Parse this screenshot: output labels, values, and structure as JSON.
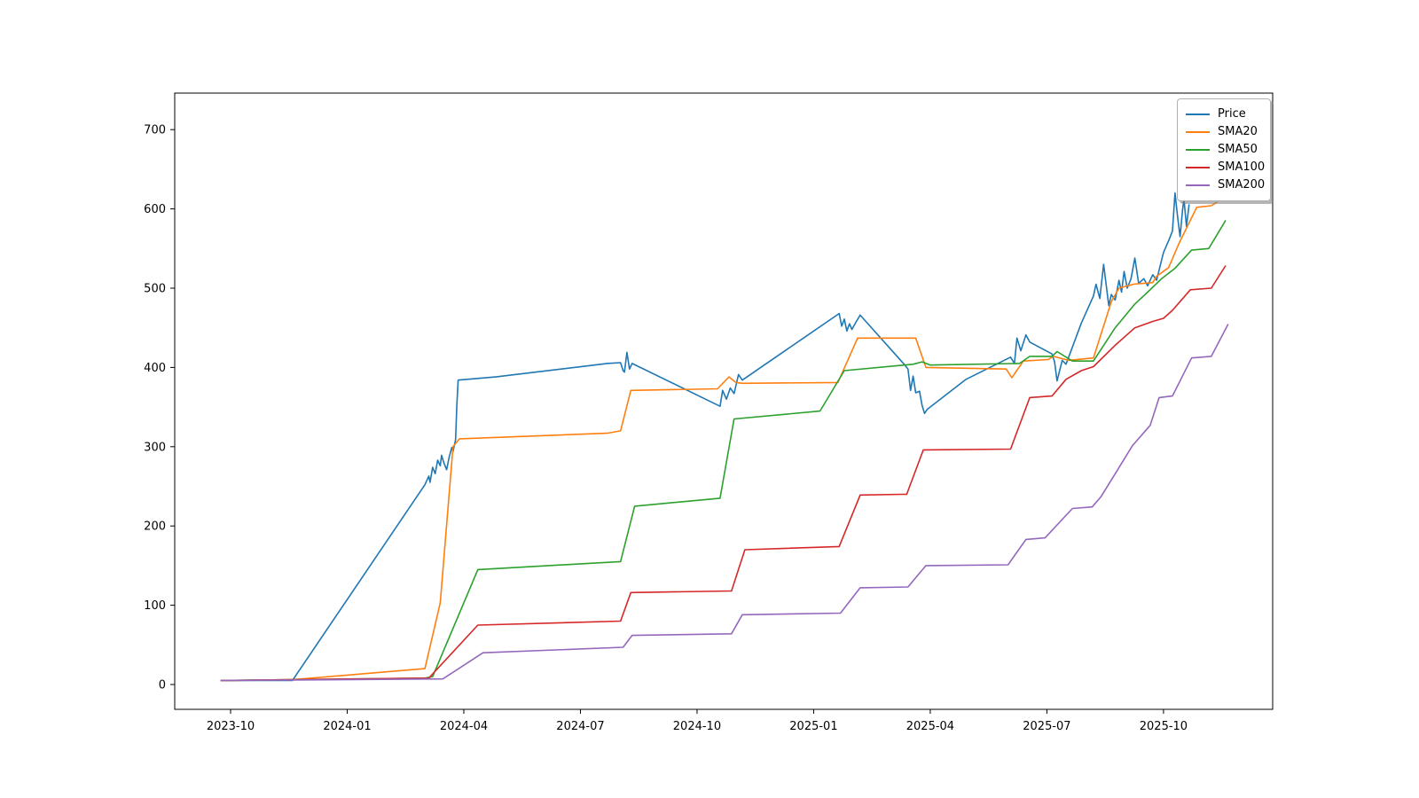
{
  "chart_data": {
    "type": "line",
    "title": "",
    "xlabel": "",
    "ylabel": "",
    "grid": false,
    "legend_position": "upper right",
    "x_tick_labels": [
      "2023-10",
      "2024-01",
      "2024-04",
      "2024-07",
      "2024-10",
      "2025-01",
      "2025-04",
      "2025-07",
      "2025-10"
    ],
    "y_tick_labels": [
      "0",
      "100",
      "200",
      "300",
      "400",
      "500",
      "600",
      "700"
    ],
    "y_ticks": [
      0,
      100,
      200,
      300,
      400,
      500,
      600,
      700
    ],
    "ylim": [
      -31,
      746
    ],
    "x_range": [
      "2023-09-24",
      "2025-11-21"
    ],
    "series": [
      {
        "name": "Price",
        "color": "#1f77b4",
        "data": [
          [
            "2023-09-24",
            5
          ],
          [
            "2023-11-19",
            5
          ],
          [
            "2024-03-01",
            252
          ],
          [
            "2024-03-04",
            263
          ],
          [
            "2024-03-05",
            255
          ],
          [
            "2024-03-07",
            274
          ],
          [
            "2024-03-09",
            266
          ],
          [
            "2024-03-11",
            283
          ],
          [
            "2024-03-13",
            276
          ],
          [
            "2024-03-14",
            289
          ],
          [
            "2024-03-16",
            279
          ],
          [
            "2024-03-18",
            271
          ],
          [
            "2024-03-20",
            287
          ],
          [
            "2024-03-22",
            299
          ],
          [
            "2024-03-23",
            294
          ],
          [
            "2024-03-25",
            309
          ],
          [
            "2024-03-26",
            352
          ],
          [
            "2024-03-27",
            384
          ],
          [
            "2024-04-26",
            388
          ],
          [
            "2024-07-22",
            405
          ],
          [
            "2024-08-02",
            406
          ],
          [
            "2024-08-04",
            396
          ],
          [
            "2024-08-05",
            394
          ],
          [
            "2024-08-07",
            419
          ],
          [
            "2024-08-09",
            398
          ],
          [
            "2024-08-11",
            405
          ],
          [
            "2024-10-19",
            351
          ],
          [
            "2024-10-21",
            371
          ],
          [
            "2024-10-24",
            360
          ],
          [
            "2024-10-27",
            374
          ],
          [
            "2024-10-30",
            367
          ],
          [
            "2024-11-03",
            391
          ],
          [
            "2024-11-06",
            384
          ],
          [
            "2025-01-21",
            468
          ],
          [
            "2025-01-23",
            452
          ],
          [
            "2025-01-25",
            461
          ],
          [
            "2025-01-27",
            446
          ],
          [
            "2025-01-29",
            455
          ],
          [
            "2025-01-31",
            448
          ],
          [
            "2025-02-04",
            458
          ],
          [
            "2025-02-07",
            466
          ],
          [
            "2025-03-11",
            404
          ],
          [
            "2025-03-14",
            398
          ],
          [
            "2025-03-16",
            371
          ],
          [
            "2025-03-18",
            389
          ],
          [
            "2025-03-20",
            368
          ],
          [
            "2025-03-23",
            370
          ],
          [
            "2025-03-25",
            352
          ],
          [
            "2025-03-27",
            342
          ],
          [
            "2025-03-29",
            347
          ],
          [
            "2025-04-29",
            385
          ],
          [
            "2025-06-03",
            413
          ],
          [
            "2025-06-06",
            405
          ],
          [
            "2025-06-08",
            437
          ],
          [
            "2025-06-11",
            421
          ],
          [
            "2025-06-15",
            441
          ],
          [
            "2025-06-18",
            432
          ],
          [
            "2025-07-05",
            417
          ],
          [
            "2025-07-07",
            407
          ],
          [
            "2025-07-09",
            383
          ],
          [
            "2025-07-13",
            409
          ],
          [
            "2025-07-16",
            404
          ],
          [
            "2025-07-28",
            456
          ],
          [
            "2025-08-07",
            490
          ],
          [
            "2025-08-09",
            505
          ],
          [
            "2025-08-12",
            487
          ],
          [
            "2025-08-15",
            530
          ],
          [
            "2025-08-19",
            478
          ],
          [
            "2025-08-21",
            492
          ],
          [
            "2025-08-24",
            485
          ],
          [
            "2025-08-27",
            510
          ],
          [
            "2025-08-29",
            495
          ],
          [
            "2025-08-31",
            521
          ],
          [
            "2025-09-03",
            500
          ],
          [
            "2025-09-06",
            512
          ],
          [
            "2025-09-09",
            538
          ],
          [
            "2025-09-12",
            506
          ],
          [
            "2025-09-16",
            512
          ],
          [
            "2025-09-19",
            503
          ],
          [
            "2025-09-23",
            517
          ],
          [
            "2025-09-26",
            510
          ],
          [
            "2025-10-01",
            545
          ],
          [
            "2025-10-05",
            560
          ],
          [
            "2025-10-08",
            572
          ],
          [
            "2025-10-10",
            620
          ],
          [
            "2025-10-12",
            590
          ],
          [
            "2025-10-14",
            565
          ],
          [
            "2025-10-16",
            600
          ],
          [
            "2025-10-17",
            612
          ],
          [
            "2025-10-19",
            578
          ],
          [
            "2025-10-21",
            605
          ]
        ]
      },
      {
        "name": "SMA20",
        "color": "#ff7f0e",
        "data": [
          [
            "2023-09-24",
            5
          ],
          [
            "2023-11-19",
            6
          ],
          [
            "2024-03-01",
            20
          ],
          [
            "2024-03-13",
            103
          ],
          [
            "2024-03-23",
            300
          ],
          [
            "2024-03-28",
            310
          ],
          [
            "2024-07-22",
            317
          ],
          [
            "2024-08-02",
            320
          ],
          [
            "2024-08-10",
            371
          ],
          [
            "2024-10-17",
            373
          ],
          [
            "2024-10-26",
            388
          ],
          [
            "2024-11-01",
            381
          ],
          [
            "2024-11-06",
            380
          ],
          [
            "2025-01-20",
            381
          ],
          [
            "2025-02-05",
            437
          ],
          [
            "2025-03-20",
            437
          ],
          [
            "2025-03-28",
            400
          ],
          [
            "2025-04-29",
            399
          ],
          [
            "2025-05-30",
            398
          ],
          [
            "2025-06-04",
            387
          ],
          [
            "2025-06-13",
            408
          ],
          [
            "2025-07-02",
            410
          ],
          [
            "2025-07-06",
            414
          ],
          [
            "2025-07-18",
            409
          ],
          [
            "2025-08-07",
            412
          ],
          [
            "2025-08-21",
            483
          ],
          [
            "2025-08-27",
            500
          ],
          [
            "2025-09-08",
            505
          ],
          [
            "2025-09-23",
            507
          ],
          [
            "2025-09-26",
            515
          ],
          [
            "2025-10-05",
            526
          ],
          [
            "2025-10-13",
            556
          ],
          [
            "2025-10-27",
            602
          ],
          [
            "2025-11-08",
            604
          ],
          [
            "2025-11-12",
            608
          ]
        ]
      },
      {
        "name": "SMA50",
        "color": "#2ca02c",
        "data": [
          [
            "2023-09-24",
            5
          ],
          [
            "2024-03-01",
            8
          ],
          [
            "2024-03-07",
            10
          ],
          [
            "2024-04-12",
            145
          ],
          [
            "2024-08-02",
            155
          ],
          [
            "2024-08-13",
            225
          ],
          [
            "2024-10-19",
            235
          ],
          [
            "2024-10-30",
            335
          ],
          [
            "2025-01-06",
            345
          ],
          [
            "2025-01-25",
            396
          ],
          [
            "2025-03-18",
            404
          ],
          [
            "2025-03-25",
            407
          ],
          [
            "2025-04-01",
            403
          ],
          [
            "2025-06-10",
            405
          ],
          [
            "2025-06-18",
            414
          ],
          [
            "2025-07-05",
            414
          ],
          [
            "2025-07-09",
            420
          ],
          [
            "2025-07-21",
            408
          ],
          [
            "2025-08-07",
            408
          ],
          [
            "2025-08-24",
            450
          ],
          [
            "2025-09-09",
            480
          ],
          [
            "2025-09-19",
            495
          ],
          [
            "2025-09-30",
            512
          ],
          [
            "2025-10-10",
            525
          ],
          [
            "2025-10-23",
            548
          ],
          [
            "2025-11-06",
            550
          ],
          [
            "2025-11-19",
            585
          ]
        ]
      },
      {
        "name": "SMA100",
        "color": "#d62728",
        "data": [
          [
            "2023-09-24",
            5
          ],
          [
            "2024-03-04",
            8
          ],
          [
            "2024-04-12",
            75
          ],
          [
            "2024-08-02",
            80
          ],
          [
            "2024-08-10",
            116
          ],
          [
            "2024-10-28",
            118
          ],
          [
            "2024-11-08",
            170
          ],
          [
            "2025-01-21",
            174
          ],
          [
            "2025-02-07",
            239
          ],
          [
            "2025-03-13",
            240
          ],
          [
            "2025-03-26",
            296
          ],
          [
            "2025-06-03",
            297
          ],
          [
            "2025-06-18",
            362
          ],
          [
            "2025-07-05",
            364
          ],
          [
            "2025-07-16",
            385
          ],
          [
            "2025-07-28",
            396
          ],
          [
            "2025-08-07",
            401
          ],
          [
            "2025-08-24",
            428
          ],
          [
            "2025-09-09",
            450
          ],
          [
            "2025-09-23",
            458
          ],
          [
            "2025-10-01",
            462
          ],
          [
            "2025-10-08",
            472
          ],
          [
            "2025-10-22",
            498
          ],
          [
            "2025-11-08",
            500
          ],
          [
            "2025-11-19",
            528
          ]
        ]
      },
      {
        "name": "SMA200",
        "color": "#9467bd",
        "data": [
          [
            "2023-09-24",
            5
          ],
          [
            "2024-03-15",
            7
          ],
          [
            "2024-04-16",
            40
          ],
          [
            "2024-08-04",
            47
          ],
          [
            "2024-08-11",
            62
          ],
          [
            "2024-10-28",
            64
          ],
          [
            "2024-11-06",
            88
          ],
          [
            "2025-01-22",
            90
          ],
          [
            "2025-02-07",
            122
          ],
          [
            "2025-03-14",
            123
          ],
          [
            "2025-03-28",
            150
          ],
          [
            "2025-06-01",
            151
          ],
          [
            "2025-06-15",
            183
          ],
          [
            "2025-06-30",
            185
          ],
          [
            "2025-07-21",
            222
          ],
          [
            "2025-08-06",
            224
          ],
          [
            "2025-08-13",
            237
          ],
          [
            "2025-08-26",
            271
          ],
          [
            "2025-09-07",
            301
          ],
          [
            "2025-09-21",
            327
          ],
          [
            "2025-09-28",
            362
          ],
          [
            "2025-10-08",
            364
          ],
          [
            "2025-10-13",
            380
          ],
          [
            "2025-10-23",
            412
          ],
          [
            "2025-11-08",
            414
          ],
          [
            "2025-11-21",
            454
          ]
        ]
      }
    ]
  }
}
